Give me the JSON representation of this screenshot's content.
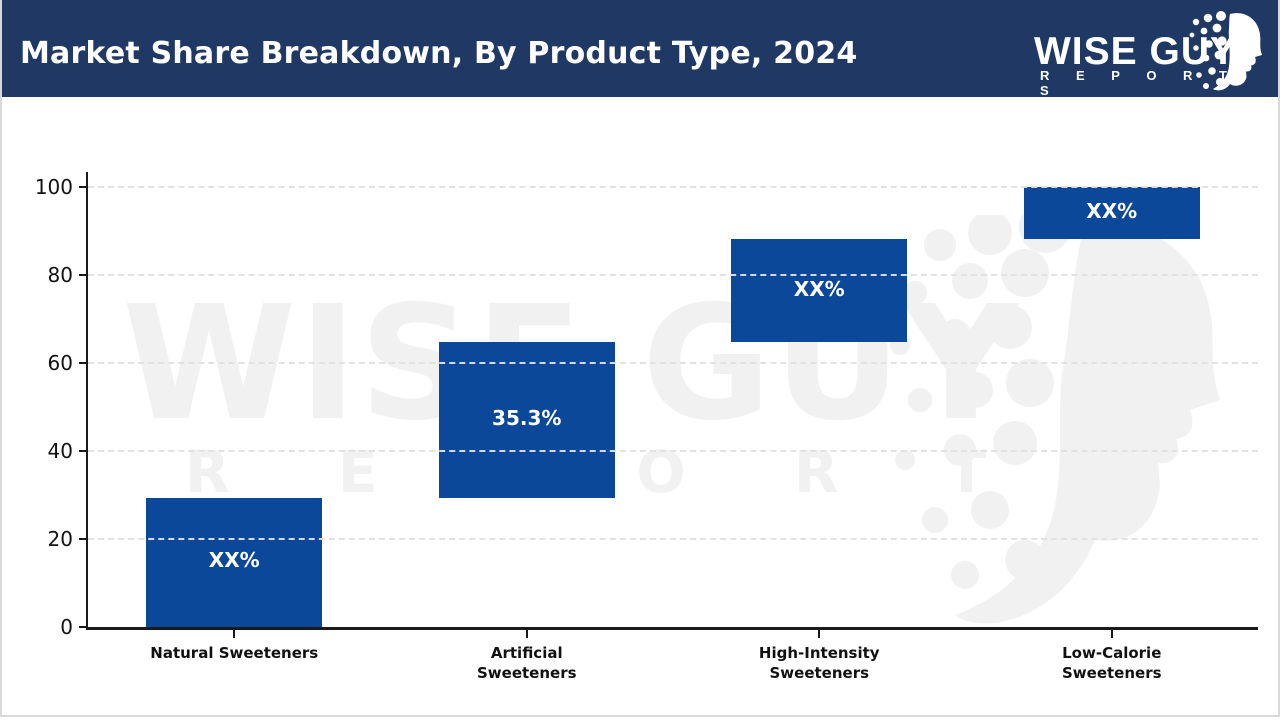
{
  "header": {
    "title": "Market Share Breakdown, By Product Type, 2024",
    "logo": {
      "line1": "WISE GUY",
      "line2": "R E P O R T S"
    }
  },
  "watermark": {
    "line1": "WISE GUY",
    "line2": "R E P O R T S"
  },
  "colors": {
    "header_bg": "#1f3864",
    "bar": "#0b4899",
    "bar_label_text": "#ffffff",
    "grid": "#e0e0e0",
    "axis": "#1a1a1a",
    "watermark": "#f1f1f1",
    "page_border": "#d9d9d9"
  },
  "chart_data": {
    "type": "bar",
    "subtype": "waterfall",
    "title": "Market Share Breakdown, By Product Type, 2024",
    "categories": [
      "Natural Sweeteners",
      "Artificial Sweeteners",
      "High-Intensity Sweeteners",
      "Low-Calorie Sweeteners"
    ],
    "category_lines": [
      [
        "Natural Sweeteners"
      ],
      [
        "Artificial",
        "Sweeteners"
      ],
      [
        "High-Intensity",
        "Sweeteners"
      ],
      [
        "Low-Calorie",
        "Sweeteners"
      ]
    ],
    "bars": [
      {
        "category": "Natural Sweeteners",
        "start": 0,
        "end": 29.4,
        "value": 29.4,
        "value_label": "XX%"
      },
      {
        "category": "Artificial Sweeteners",
        "start": 29.4,
        "end": 64.7,
        "value": 35.3,
        "value_label": "35.3%"
      },
      {
        "category": "High-Intensity Sweeteners",
        "start": 64.7,
        "end": 88.2,
        "value": 23.5,
        "value_label": "XX%"
      },
      {
        "category": "Low-Calorie Sweeteners",
        "start": 88.2,
        "end": 100,
        "value": 11.8,
        "value_label": "XX%"
      }
    ],
    "yticks": [
      0,
      20,
      40,
      60,
      80,
      100
    ],
    "ylim": [
      0,
      105
    ],
    "xlabel": "",
    "ylabel": "",
    "grid": "horizontal-dashed",
    "legend": "none"
  }
}
